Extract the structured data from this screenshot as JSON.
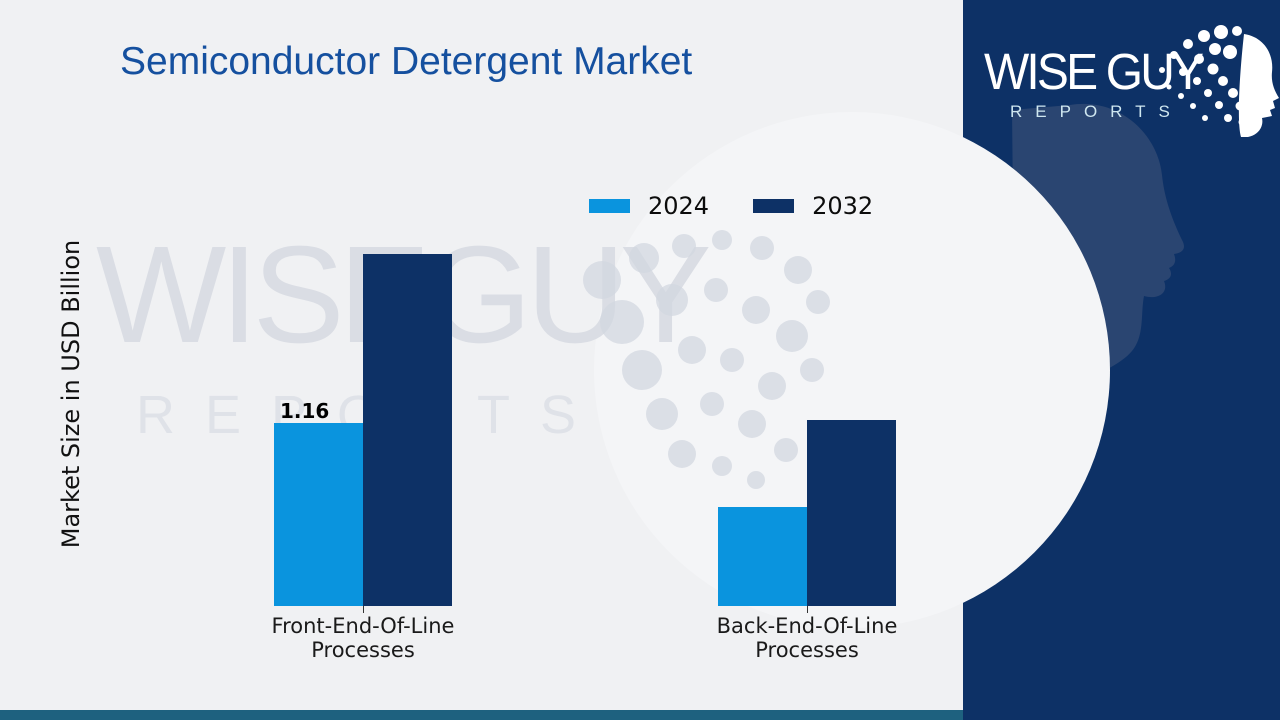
{
  "title": "Semiconductor Detergent Market",
  "logo": {
    "name": "WISE GUY",
    "subtitle": "REPORTS"
  },
  "watermark": {
    "line1": "WISEGUY",
    "line2": "REPORTS"
  },
  "palette": {
    "background": "#f0f1f3",
    "panel_navy": "#0d3166",
    "title_blue": "#15509f",
    "series_2024": "#0a94de",
    "series_2032": "#0d3166",
    "teal_strip": "#1e617f",
    "watermark_gray": "#dadde4"
  },
  "chart_data": {
    "type": "bar",
    "title": "Semiconductor Detergent Market",
    "xlabel": "",
    "ylabel": "Market Size in USD Billion",
    "categories": [
      "Front-End-Of-Line Processes",
      "Back-End-Of-Line Processes"
    ],
    "categories_lines": [
      [
        "Front-End-Of-Line",
        "Processes"
      ],
      [
        "Back-End-Of-Line",
        "Processes"
      ]
    ],
    "series": [
      {
        "name": "2024",
        "color": "#0a94de",
        "values": [
          1.16,
          0.63
        ]
      },
      {
        "name": "2032",
        "color": "#0d3166",
        "values": [
          2.23,
          1.18
        ]
      }
    ],
    "bar_labels": [
      {
        "series": 0,
        "category": 0,
        "text": "1.16"
      }
    ],
    "ylim": [
      0,
      2.4
    ],
    "grid": false,
    "legend_position": "top-right"
  }
}
